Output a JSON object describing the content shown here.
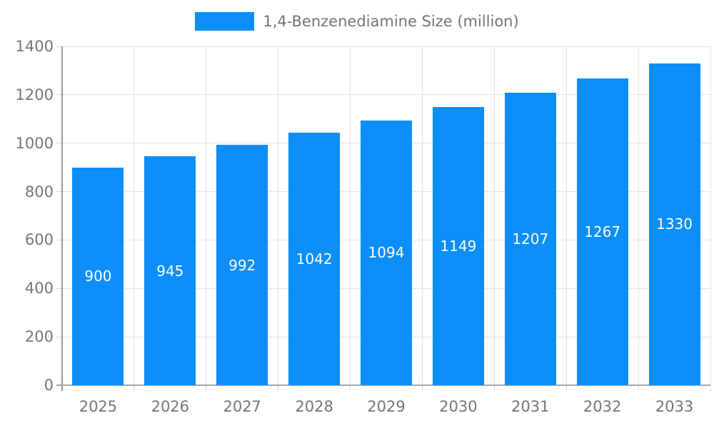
{
  "legend": {
    "label": "1,4-Benzenediamine Size (million)",
    "swatch_color": "#0c8ef8"
  },
  "chart_data": {
    "type": "bar",
    "title": "",
    "series_name": "1,4-Benzenediamine Size (million)",
    "categories": [
      "2025",
      "2026",
      "2027",
      "2028",
      "2029",
      "2030",
      "2031",
      "2032",
      "2033"
    ],
    "values": [
      900,
      945,
      992,
      1042,
      1094,
      1149,
      1207,
      1267,
      1330
    ],
    "value_labels": [
      "900",
      "945",
      "992",
      "1042",
      "1094",
      "1149",
      "1207",
      "1267",
      "1330"
    ],
    "xlabel": "",
    "ylabel": "",
    "ylim": [
      0,
      1400
    ],
    "ytick_step": 200,
    "ytick_labels": [
      "0",
      "200",
      "400",
      "600",
      "800",
      "1000",
      "1200",
      "1400"
    ],
    "grid": true,
    "legend_position": "top",
    "bar_color": "#0c8ef8",
    "value_label_color": "#ffffff",
    "grid_color": "#e3e3e3",
    "axis_color": "#999999",
    "tick_label_color": "#757575"
  }
}
